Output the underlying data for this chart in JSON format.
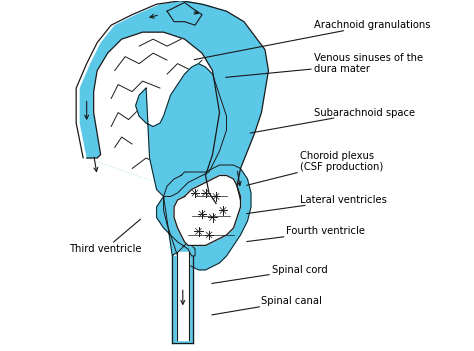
{
  "bg_color": "#ffffff",
  "csf_color": "#5bc8e8",
  "line_color": "#1a1a1a",
  "label_color": "#000000",
  "figsize": [
    4.74,
    3.51
  ],
  "dpi": 100,
  "labels": [
    [
      "Arachnoid granulations",
      [
        0.72,
        0.93
      ],
      [
        0.37,
        0.83
      ],
      "left"
    ],
    [
      "Venous sinuses of the\ndura mater",
      [
        0.72,
        0.82
      ],
      [
        0.46,
        0.78
      ],
      "left"
    ],
    [
      "Subarachnoid space",
      [
        0.72,
        0.68
      ],
      [
        0.53,
        0.62
      ],
      "left"
    ],
    [
      "Choroid plexus\n(CSF production)",
      [
        0.68,
        0.54
      ],
      [
        0.52,
        0.47
      ],
      "left"
    ],
    [
      "Lateral ventricles",
      [
        0.68,
        0.43
      ],
      [
        0.52,
        0.39
      ],
      "left"
    ],
    [
      "Fourth ventricle",
      [
        0.64,
        0.34
      ],
      [
        0.52,
        0.31
      ],
      "left"
    ],
    [
      "Spinal cord",
      [
        0.6,
        0.23
      ],
      [
        0.42,
        0.19
      ],
      "left"
    ],
    [
      "Spinal canal",
      [
        0.57,
        0.14
      ],
      [
        0.42,
        0.1
      ],
      "left"
    ],
    [
      "Third ventricle",
      [
        0.02,
        0.29
      ],
      [
        0.23,
        0.38
      ],
      "left"
    ]
  ]
}
